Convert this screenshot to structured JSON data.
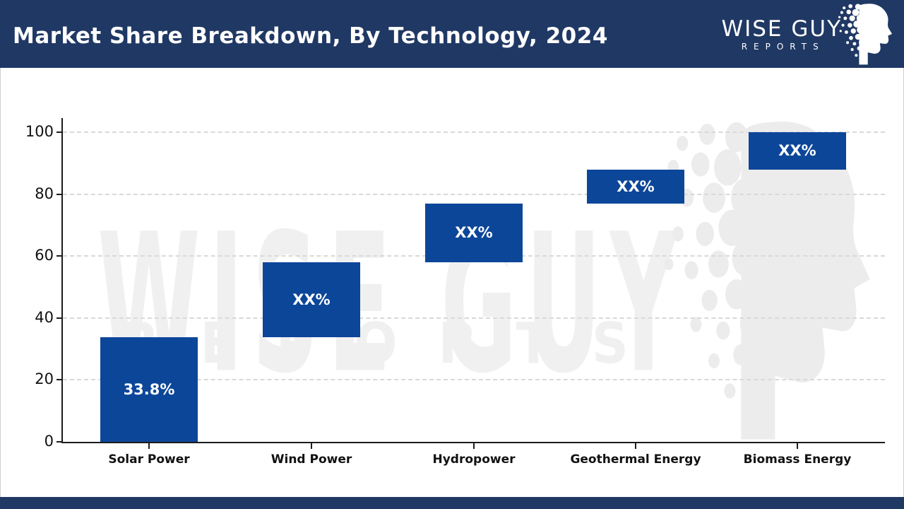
{
  "header": {
    "title": "Market Share Breakdown, By Technology, 2024",
    "logo": {
      "wordmark": "WISE GUY",
      "subtitle": "REPORTS"
    },
    "background_color": "#203864"
  },
  "watermark": {
    "line1": "WISE GUY",
    "line2": "REPORTS"
  },
  "chart_data": {
    "type": "bar",
    "subtype": "waterfall",
    "title": "Market Share Breakdown, By Technology, 2024",
    "categories": [
      "Solar Power",
      "Wind Power",
      "Hydropower",
      "Geothermal Energy",
      "Biomass Energy"
    ],
    "bars": [
      {
        "category": "Solar Power",
        "start": 0,
        "end": 33.8,
        "label": "33.8%"
      },
      {
        "category": "Wind Power",
        "start": 33.8,
        "end": 58.0,
        "label": "XX%"
      },
      {
        "category": "Hydropower",
        "start": 58.0,
        "end": 77.0,
        "label": "XX%"
      },
      {
        "category": "Geothermal Energy",
        "start": 77.0,
        "end": 88.0,
        "label": "XX%"
      },
      {
        "category": "Biomass Energy",
        "start": 88.0,
        "end": 100.0,
        "label": "XX%"
      }
    ],
    "xlabel": "",
    "ylabel": "",
    "ylim": [
      0,
      104
    ],
    "yticks": [
      0,
      20,
      40,
      60,
      80,
      100
    ],
    "grid": "horizontal-dashed",
    "legend": "none",
    "bar_color": "#0c4699",
    "bar_label_color": "#ffffff",
    "axis_color": "#1c1c1c",
    "gridline_color": "#d9d9d9"
  }
}
